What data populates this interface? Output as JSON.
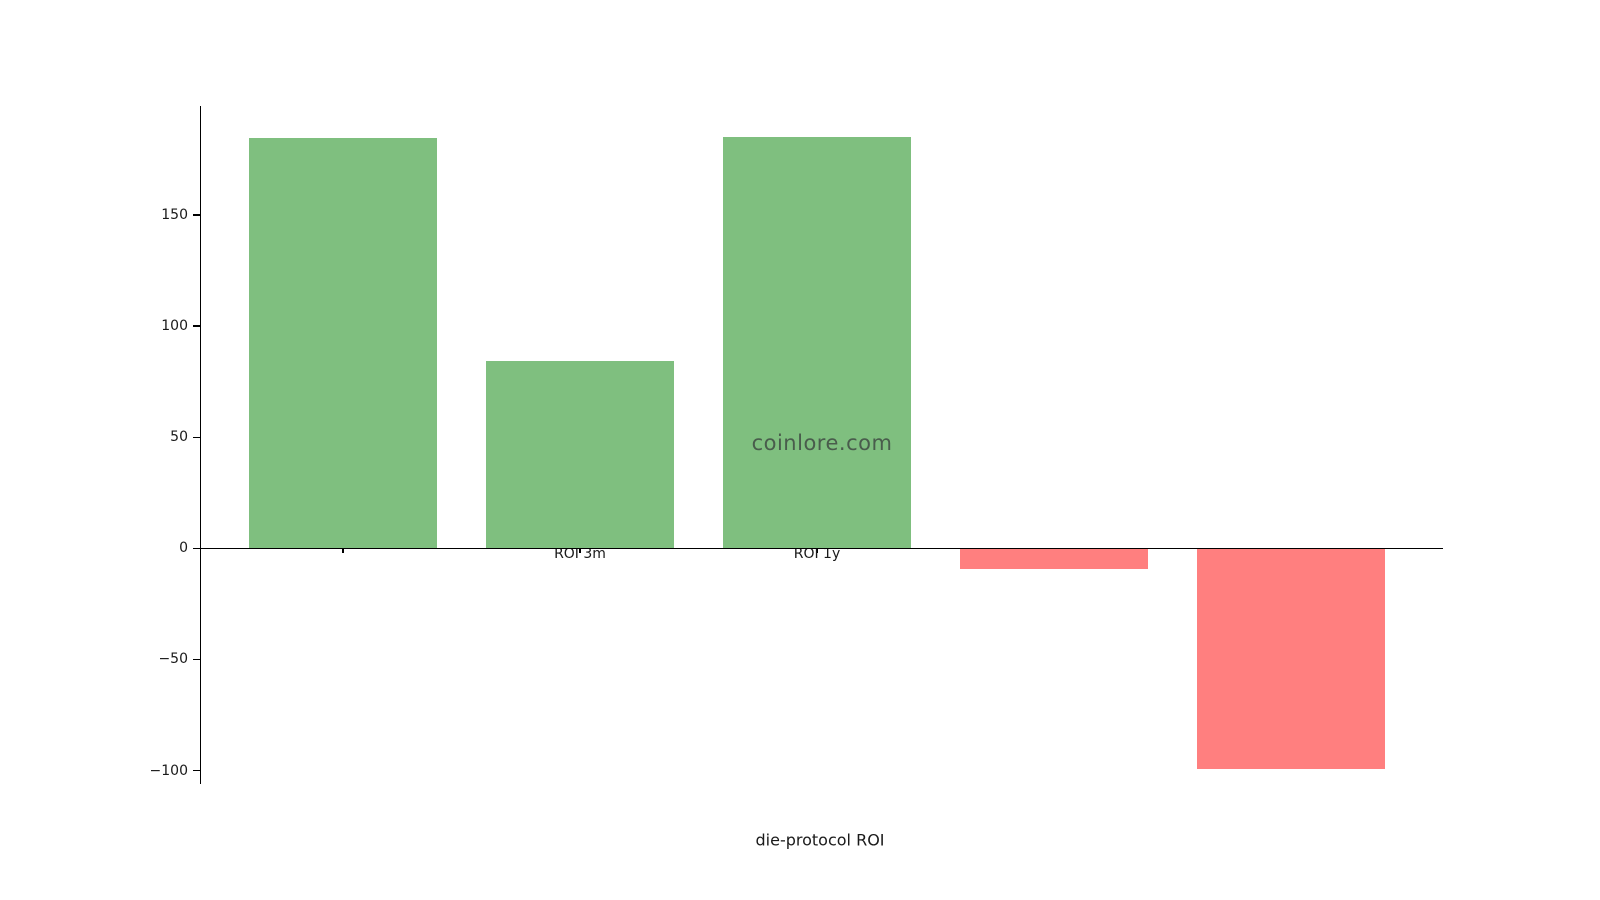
{
  "chart_data": {
    "type": "bar",
    "title": "",
    "xlabel": "die-protocol ROI",
    "ylabel": "",
    "categories": [
      "",
      "ROI 3m",
      "ROI 1y",
      "",
      ""
    ],
    "values": [
      184.7,
      84.2,
      185.1,
      -9.4,
      -99.5
    ],
    "y_ticks": [
      150,
      100,
      50,
      0,
      -50,
      -100
    ],
    "ylim": [
      -106,
      199
    ],
    "grid": false,
    "legend": "none",
    "positive_color": "#7fbf7f",
    "negative_color": "#ff7f7f",
    "axis_color": "#000000",
    "tick_text_color": "#1a1a1a",
    "watermark": "coinlore.com",
    "notes": "bars 1, 4 and 5 have no visible x tick labels; labels of negative bars are covered by the bars themselves"
  }
}
